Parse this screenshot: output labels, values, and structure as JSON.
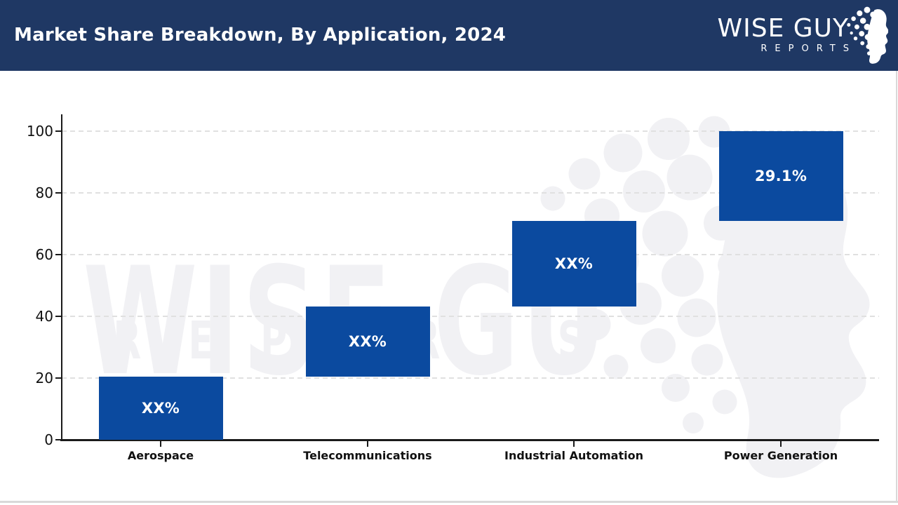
{
  "header": {
    "title": "Market Share Breakdown, By Application, 2024",
    "logo": {
      "line1": "WISE GUY",
      "line2": "REPORTS"
    }
  },
  "watermark": {
    "line1": "WISE GU",
    "line2": "REPORTS"
  },
  "chart_data": {
    "type": "bar",
    "subtype": "waterfall",
    "title": "Market Share Breakdown, By Application, 2024",
    "categories": [
      "Aerospace",
      "Telecommunications",
      "Industrial Automation",
      "Power Generation"
    ],
    "segments": [
      {
        "category": "Aerospace",
        "start": 0,
        "end": 20.4,
        "label": "XX%"
      },
      {
        "category": "Telecommunications",
        "start": 20.4,
        "end": 43.1,
        "label": "XX%"
      },
      {
        "category": "Industrial Automation",
        "start": 43.1,
        "end": 70.9,
        "label": "XX%"
      },
      {
        "category": "Power Generation",
        "start": 70.9,
        "end": 100,
        "label": "29.1%"
      }
    ],
    "yticks": [
      0,
      20,
      40,
      60,
      80,
      100
    ],
    "ylim": [
      0,
      100
    ],
    "grid": "horizontal-dashed",
    "legend": "none",
    "bar_color": "#0B4A9F"
  },
  "colors": {
    "header_bg": "#1F3864",
    "bar": "#0B4A9F",
    "grid": "#E0E0E0",
    "axis": "#1A1A1A",
    "tick_text": "#111111",
    "watermark": "#F1F1F4",
    "edge_line": "#D9D9D9"
  }
}
